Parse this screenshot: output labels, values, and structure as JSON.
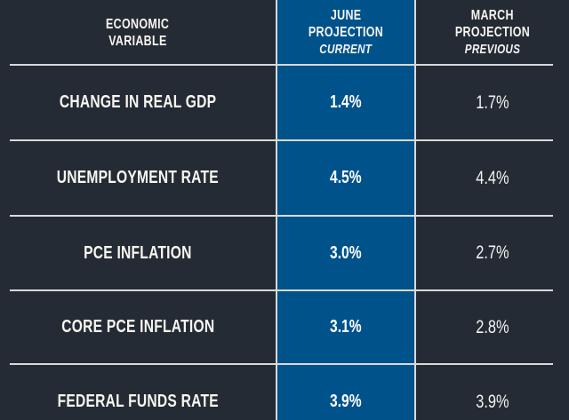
{
  "header": {
    "col1": {
      "line1": "ECONOMIC",
      "line2": "VARIABLE"
    },
    "col2": {
      "line1": "JUNE",
      "line2": "PROJECTION",
      "sub": "CURRENT"
    },
    "col3": {
      "line1": "MARCH",
      "line2": "PROJECTION",
      "sub": "PREVIOUS"
    }
  },
  "rows": [
    {
      "variable": "CHANGE IN REAL GDP",
      "june": "1.4%",
      "march": "1.7%"
    },
    {
      "variable": "UNEMPLOYMENT RATE",
      "june": "4.5%",
      "march": "4.4%"
    },
    {
      "variable": "PCE INFLATION",
      "june": "3.0%",
      "march": "2.7%"
    },
    {
      "variable": "CORE PCE INFLATION",
      "june": "3.1%",
      "march": "2.8%"
    },
    {
      "variable": "FEDERAL FUNDS RATE",
      "june": "3.9%",
      "march": "3.9%"
    }
  ],
  "colors": {
    "background": "#242B34",
    "highlight_column": "#00528B",
    "divider_line": "#D8DADC",
    "text": "#FFFFFF"
  },
  "chart_data": {
    "type": "table",
    "title": "Economic projections: June (current) vs March (previous)",
    "columns": [
      "Economic Variable",
      "June Projection (Current)",
      "March Projection (Previous)"
    ],
    "rows": [
      [
        "Change in Real GDP",
        "1.4%",
        "1.7%"
      ],
      [
        "Unemployment Rate",
        "4.5%",
        "4.4%"
      ],
      [
        "PCE Inflation",
        "3.0%",
        "2.7%"
      ],
      [
        "Core PCE Inflation",
        "3.1%",
        "2.8%"
      ],
      [
        "Federal Funds Rate",
        "3.9%",
        "3.9%"
      ]
    ],
    "series": [
      {
        "name": "June Projection (Current)",
        "values": [
          1.4,
          4.5,
          3.0,
          3.1,
          3.9
        ]
      },
      {
        "name": "March Projection (Previous)",
        "values": [
          1.7,
          4.4,
          2.7,
          2.8,
          3.9
        ]
      }
    ],
    "categories": [
      "Change in Real GDP",
      "Unemployment Rate",
      "PCE Inflation",
      "Core PCE Inflation",
      "Federal Funds Rate"
    ],
    "layout": {
      "highlighted_column": "June Projection (Current)",
      "grid": "horizontal dividers",
      "legend": "none"
    }
  }
}
